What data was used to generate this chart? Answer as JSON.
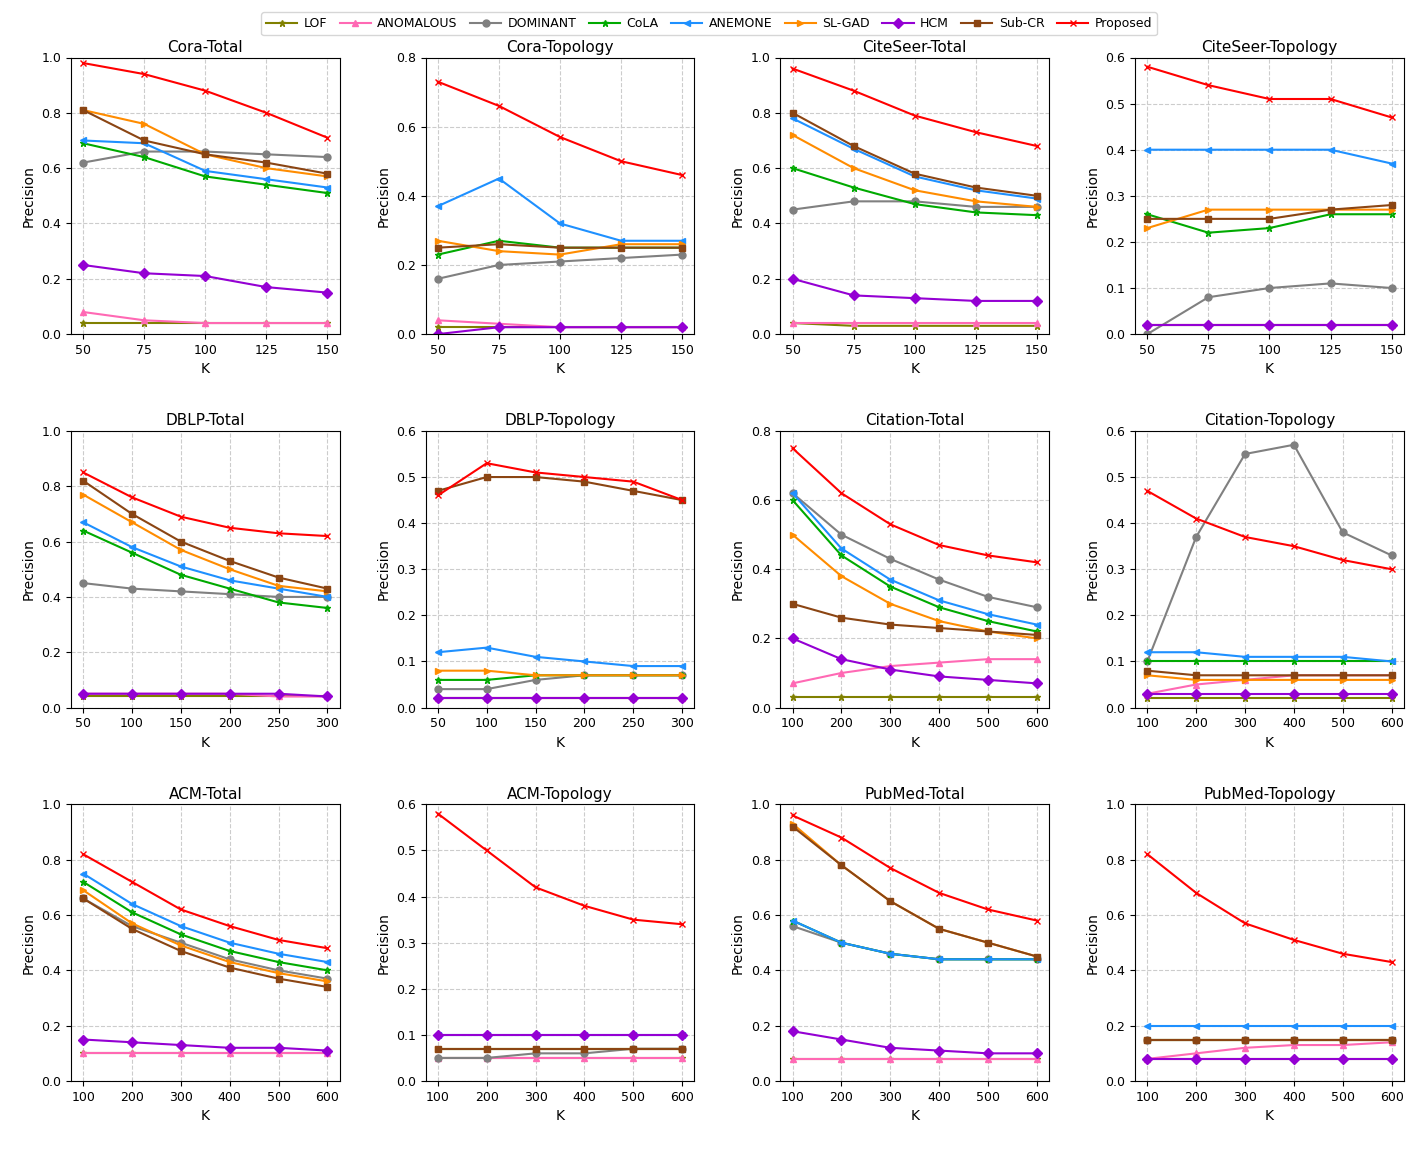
{
  "legend_labels": [
    "LOF",
    "ANOMALOUS",
    "DOMINANT",
    "CoLA",
    "ANEMONE",
    "SL-GAD",
    "HCM",
    "Sub-CR",
    "Proposed"
  ],
  "colors": {
    "LOF": "#808000",
    "ANOMALOUS": "#FF69B4",
    "DOMINANT": "#808080",
    "CoLA": "#00AA00",
    "ANEMONE": "#1E90FF",
    "SL-GAD": "#FF8C00",
    "HCM": "#9400D3",
    "Sub-CR": "#8B4513",
    "Proposed": "#FF0000"
  },
  "markers": {
    "LOF": "*",
    "ANOMALOUS": "^",
    "DOMINANT": "o",
    "CoLA": "*",
    "ANEMONE": "<",
    "SL-GAD": ">",
    "HCM": "D",
    "Sub-CR": "s",
    "Proposed": "x"
  },
  "subplots": [
    {
      "title": "Cora-Total",
      "xlabel": "K",
      "ylabel": "Precision",
      "xlim": [
        50,
        150
      ],
      "ylim": [
        0,
        1
      ],
      "xticks": [
        50,
        75,
        100,
        125,
        150
      ],
      "yticks": [
        0,
        0.2,
        0.4,
        0.6,
        0.8,
        1
      ],
      "x": [
        50,
        75,
        100,
        125,
        150
      ],
      "data": {
        "LOF": [
          0.04,
          0.04,
          0.04,
          0.04,
          0.04
        ],
        "ANOMALOUS": [
          0.08,
          0.05,
          0.04,
          0.04,
          0.04
        ],
        "DOMINANT": [
          0.62,
          0.66,
          0.66,
          0.65,
          0.64
        ],
        "CoLA": [
          0.69,
          0.64,
          0.57,
          0.54,
          0.51
        ],
        "ANEMONE": [
          0.7,
          0.69,
          0.59,
          0.56,
          0.53
        ],
        "SL-GAD": [
          0.81,
          0.76,
          0.65,
          0.6,
          0.57
        ],
        "HCM": [
          0.25,
          0.22,
          0.21,
          0.17,
          0.15
        ],
        "Sub-CR": [
          0.81,
          0.7,
          0.65,
          0.62,
          0.58
        ],
        "Proposed": [
          0.98,
          0.94,
          0.88,
          0.8,
          0.71
        ]
      }
    },
    {
      "title": "Cora-Topology",
      "xlabel": "K",
      "ylabel": "Precision",
      "xlim": [
        50,
        150
      ],
      "ylim": [
        0,
        0.8
      ],
      "xticks": [
        50,
        75,
        100,
        125,
        150
      ],
      "yticks": [
        0,
        0.2,
        0.4,
        0.6,
        0.8
      ],
      "x": [
        50,
        75,
        100,
        125,
        150
      ],
      "data": {
        "LOF": [
          0.02,
          0.02,
          0.02,
          0.02,
          0.02
        ],
        "ANOMALOUS": [
          0.04,
          0.03,
          0.02,
          0.02,
          0.02
        ],
        "DOMINANT": [
          0.16,
          0.2,
          0.21,
          0.22,
          0.23
        ],
        "CoLA": [
          0.23,
          0.27,
          0.25,
          0.25,
          0.25
        ],
        "ANEMONE": [
          0.37,
          0.45,
          0.32,
          0.27,
          0.27
        ],
        "SL-GAD": [
          0.27,
          0.24,
          0.23,
          0.26,
          0.26
        ],
        "HCM": [
          0.0,
          0.02,
          0.02,
          0.02,
          0.02
        ],
        "Sub-CR": [
          0.25,
          0.26,
          0.25,
          0.25,
          0.25
        ],
        "Proposed": [
          0.73,
          0.66,
          0.57,
          0.5,
          0.46
        ]
      }
    },
    {
      "title": "CiteSeer-Total",
      "xlabel": "K",
      "ylabel": "Precision",
      "xlim": [
        50,
        150
      ],
      "ylim": [
        0,
        1
      ],
      "xticks": [
        50,
        75,
        100,
        125,
        150
      ],
      "yticks": [
        0,
        0.2,
        0.4,
        0.6,
        0.8,
        1
      ],
      "x": [
        50,
        75,
        100,
        125,
        150
      ],
      "data": {
        "LOF": [
          0.04,
          0.03,
          0.03,
          0.03,
          0.03
        ],
        "ANOMALOUS": [
          0.04,
          0.04,
          0.04,
          0.04,
          0.04
        ],
        "DOMINANT": [
          0.45,
          0.48,
          0.48,
          0.46,
          0.46
        ],
        "CoLA": [
          0.6,
          0.53,
          0.47,
          0.44,
          0.43
        ],
        "ANEMONE": [
          0.78,
          0.67,
          0.57,
          0.52,
          0.49
        ],
        "SL-GAD": [
          0.72,
          0.6,
          0.52,
          0.48,
          0.46
        ],
        "HCM": [
          0.2,
          0.14,
          0.13,
          0.12,
          0.12
        ],
        "Sub-CR": [
          0.8,
          0.68,
          0.58,
          0.53,
          0.5
        ],
        "Proposed": [
          0.96,
          0.88,
          0.79,
          0.73,
          0.68
        ]
      }
    },
    {
      "title": "CiteSeer-Topology",
      "xlabel": "K",
      "ylabel": "Precision",
      "xlim": [
        50,
        150
      ],
      "ylim": [
        0,
        0.6
      ],
      "xticks": [
        50,
        75,
        100,
        125,
        150
      ],
      "yticks": [
        0,
        0.1,
        0.2,
        0.3,
        0.4,
        0.5,
        0.6
      ],
      "x": [
        50,
        75,
        100,
        125,
        150
      ],
      "data": {
        "LOF": [
          0.02,
          0.02,
          0.02,
          0.02,
          0.02
        ],
        "ANOMALOUS": [
          0.02,
          0.02,
          0.02,
          0.02,
          0.02
        ],
        "DOMINANT": [
          0.0,
          0.08,
          0.1,
          0.11,
          0.1
        ],
        "CoLA": [
          0.26,
          0.22,
          0.23,
          0.26,
          0.26
        ],
        "ANEMONE": [
          0.4,
          0.4,
          0.4,
          0.4,
          0.37
        ],
        "SL-GAD": [
          0.23,
          0.27,
          0.27,
          0.27,
          0.27
        ],
        "HCM": [
          0.02,
          0.02,
          0.02,
          0.02,
          0.02
        ],
        "Sub-CR": [
          0.25,
          0.25,
          0.25,
          0.27,
          0.28
        ],
        "Proposed": [
          0.58,
          0.54,
          0.51,
          0.51,
          0.47
        ]
      }
    },
    {
      "title": "DBLP-Total",
      "xlabel": "K",
      "ylabel": "Precision",
      "xlim": [
        50,
        300
      ],
      "ylim": [
        0,
        1
      ],
      "xticks": [
        50,
        100,
        150,
        200,
        250,
        300
      ],
      "yticks": [
        0,
        0.2,
        0.4,
        0.6,
        0.8,
        1
      ],
      "x": [
        50,
        100,
        150,
        200,
        250,
        300
      ],
      "data": {
        "LOF": [
          0.04,
          0.04,
          0.04,
          0.04,
          0.04,
          0.04
        ],
        "ANOMALOUS": [
          0.05,
          0.05,
          0.05,
          0.05,
          0.04,
          0.04
        ],
        "DOMINANT": [
          0.45,
          0.43,
          0.42,
          0.41,
          0.4,
          0.4
        ],
        "CoLA": [
          0.64,
          0.56,
          0.48,
          0.43,
          0.38,
          0.36
        ],
        "ANEMONE": [
          0.67,
          0.58,
          0.51,
          0.46,
          0.43,
          0.4
        ],
        "SL-GAD": [
          0.77,
          0.67,
          0.57,
          0.5,
          0.44,
          0.42
        ],
        "HCM": [
          0.05,
          0.05,
          0.05,
          0.05,
          0.05,
          0.04
        ],
        "Sub-CR": [
          0.82,
          0.7,
          0.6,
          0.53,
          0.47,
          0.43
        ],
        "Proposed": [
          0.85,
          0.76,
          0.69,
          0.65,
          0.63,
          0.62
        ]
      }
    },
    {
      "title": "DBLP-Topology",
      "xlabel": "K",
      "ylabel": "Precision",
      "xlim": [
        50,
        300
      ],
      "ylim": [
        0,
        0.6
      ],
      "xticks": [
        50,
        100,
        150,
        200,
        250,
        300
      ],
      "yticks": [
        0,
        0.1,
        0.2,
        0.3,
        0.4,
        0.5,
        0.6
      ],
      "x": [
        50,
        100,
        150,
        200,
        250,
        300
      ],
      "data": {
        "LOF": [
          0.02,
          0.02,
          0.02,
          0.02,
          0.02,
          0.02
        ],
        "ANOMALOUS": [
          0.02,
          0.02,
          0.02,
          0.02,
          0.02,
          0.02
        ],
        "DOMINANT": [
          0.04,
          0.04,
          0.06,
          0.07,
          0.07,
          0.07
        ],
        "CoLA": [
          0.06,
          0.06,
          0.07,
          0.07,
          0.07,
          0.07
        ],
        "ANEMONE": [
          0.12,
          0.13,
          0.11,
          0.1,
          0.09,
          0.09
        ],
        "SL-GAD": [
          0.08,
          0.08,
          0.07,
          0.07,
          0.07,
          0.07
        ],
        "HCM": [
          0.02,
          0.02,
          0.02,
          0.02,
          0.02,
          0.02
        ],
        "Sub-CR": [
          0.47,
          0.5,
          0.5,
          0.49,
          0.47,
          0.45
        ],
        "Proposed": [
          0.46,
          0.53,
          0.51,
          0.5,
          0.49,
          0.45
        ]
      }
    },
    {
      "title": "Citation-Total",
      "xlabel": "K",
      "ylabel": "Precision",
      "xlim": [
        100,
        600
      ],
      "ylim": [
        0,
        0.8
      ],
      "xticks": [
        100,
        200,
        300,
        400,
        500,
        600
      ],
      "yticks": [
        0,
        0.2,
        0.4,
        0.6,
        0.8
      ],
      "x": [
        100,
        200,
        300,
        400,
        500,
        600
      ],
      "data": {
        "LOF": [
          0.03,
          0.03,
          0.03,
          0.03,
          0.03,
          0.03
        ],
        "ANOMALOUS": [
          0.07,
          0.1,
          0.12,
          0.13,
          0.14,
          0.14
        ],
        "DOMINANT": [
          0.62,
          0.5,
          0.43,
          0.37,
          0.32,
          0.29
        ],
        "CoLA": [
          0.6,
          0.44,
          0.35,
          0.29,
          0.25,
          0.22
        ],
        "ANEMONE": [
          0.62,
          0.46,
          0.37,
          0.31,
          0.27,
          0.24
        ],
        "SL-GAD": [
          0.5,
          0.38,
          0.3,
          0.25,
          0.22,
          0.2
        ],
        "HCM": [
          0.2,
          0.14,
          0.11,
          0.09,
          0.08,
          0.07
        ],
        "Sub-CR": [
          0.3,
          0.26,
          0.24,
          0.23,
          0.22,
          0.21
        ],
        "Proposed": [
          0.75,
          0.62,
          0.53,
          0.47,
          0.44,
          0.42
        ]
      }
    },
    {
      "title": "Citation-Topology",
      "xlabel": "K",
      "ylabel": "Precision",
      "xlim": [
        100,
        600
      ],
      "ylim": [
        0,
        0.6
      ],
      "xticks": [
        100,
        200,
        300,
        400,
        500,
        600
      ],
      "yticks": [
        0,
        0.1,
        0.2,
        0.3,
        0.4,
        0.5,
        0.6
      ],
      "x": [
        100,
        200,
        300,
        400,
        500,
        600
      ],
      "data": {
        "LOF": [
          0.02,
          0.02,
          0.02,
          0.02,
          0.02,
          0.02
        ],
        "ANOMALOUS": [
          0.03,
          0.05,
          0.06,
          0.07,
          0.07,
          0.07
        ],
        "DOMINANT": [
          0.1,
          0.37,
          0.55,
          0.57,
          0.38,
          0.33
        ],
        "CoLA": [
          0.1,
          0.1,
          0.1,
          0.1,
          0.1,
          0.1
        ],
        "ANEMONE": [
          0.12,
          0.12,
          0.11,
          0.11,
          0.11,
          0.1
        ],
        "SL-GAD": [
          0.07,
          0.06,
          0.06,
          0.06,
          0.06,
          0.06
        ],
        "HCM": [
          0.03,
          0.03,
          0.03,
          0.03,
          0.03,
          0.03
        ],
        "Sub-CR": [
          0.08,
          0.07,
          0.07,
          0.07,
          0.07,
          0.07
        ],
        "Proposed": [
          0.47,
          0.41,
          0.37,
          0.35,
          0.32,
          0.3
        ]
      }
    },
    {
      "title": "ACM-Total",
      "xlabel": "K",
      "ylabel": "Precision",
      "xlim": [
        100,
        600
      ],
      "ylim": [
        0,
        1
      ],
      "xticks": [
        100,
        200,
        300,
        400,
        500,
        600
      ],
      "yticks": [
        0,
        0.2,
        0.4,
        0.6,
        0.8,
        1
      ],
      "x": [
        100,
        200,
        300,
        400,
        500,
        600
      ],
      "data": {
        "LOF": [
          0.1,
          0.1,
          0.1,
          0.1,
          0.1,
          0.1
        ],
        "ANOMALOUS": [
          0.1,
          0.1,
          0.1,
          0.1,
          0.1,
          0.1
        ],
        "DOMINANT": [
          0.66,
          0.56,
          0.5,
          0.44,
          0.4,
          0.37
        ],
        "CoLA": [
          0.72,
          0.61,
          0.53,
          0.47,
          0.43,
          0.4
        ],
        "ANEMONE": [
          0.75,
          0.64,
          0.56,
          0.5,
          0.46,
          0.43
        ],
        "SL-GAD": [
          0.69,
          0.57,
          0.49,
          0.43,
          0.39,
          0.36
        ],
        "HCM": [
          0.15,
          0.14,
          0.13,
          0.12,
          0.12,
          0.11
        ],
        "Sub-CR": [
          0.66,
          0.55,
          0.47,
          0.41,
          0.37,
          0.34
        ],
        "Proposed": [
          0.82,
          0.72,
          0.62,
          0.56,
          0.51,
          0.48
        ]
      }
    },
    {
      "title": "ACM-Topology",
      "xlabel": "K",
      "ylabel": "Precision",
      "xlim": [
        100,
        600
      ],
      "ylim": [
        0,
        0.6
      ],
      "xticks": [
        100,
        200,
        300,
        400,
        500,
        600
      ],
      "yticks": [
        0,
        0.1,
        0.2,
        0.3,
        0.4,
        0.5,
        0.6
      ],
      "x": [
        100,
        200,
        300,
        400,
        500,
        600
      ],
      "data": {
        "LOF": [
          0.05,
          0.05,
          0.05,
          0.05,
          0.05,
          0.05
        ],
        "ANOMALOUS": [
          0.05,
          0.05,
          0.05,
          0.05,
          0.05,
          0.05
        ],
        "DOMINANT": [
          0.05,
          0.05,
          0.06,
          0.06,
          0.07,
          0.07
        ],
        "CoLA": [
          0.07,
          0.07,
          0.07,
          0.07,
          0.07,
          0.07
        ],
        "ANEMONE": [
          0.1,
          0.1,
          0.1,
          0.1,
          0.1,
          0.1
        ],
        "SL-GAD": [
          0.07,
          0.07,
          0.07,
          0.07,
          0.07,
          0.07
        ],
        "HCM": [
          0.1,
          0.1,
          0.1,
          0.1,
          0.1,
          0.1
        ],
        "Sub-CR": [
          0.07,
          0.07,
          0.07,
          0.07,
          0.07,
          0.07
        ],
        "Proposed": [
          0.58,
          0.5,
          0.42,
          0.38,
          0.35,
          0.34
        ]
      }
    },
    {
      "title": "PubMed-Total",
      "xlabel": "K",
      "ylabel": "Precision",
      "xlim": [
        100,
        600
      ],
      "ylim": [
        0,
        1
      ],
      "xticks": [
        100,
        200,
        300,
        400,
        500,
        600
      ],
      "yticks": [
        0,
        0.2,
        0.4,
        0.6,
        0.8,
        1
      ],
      "x": [
        100,
        200,
        300,
        400,
        500,
        600
      ],
      "data": {
        "LOF": [
          0.08,
          0.08,
          0.08,
          0.08,
          0.08,
          0.08
        ],
        "ANOMALOUS": [
          0.08,
          0.08,
          0.08,
          0.08,
          0.08,
          0.08
        ],
        "DOMINANT": [
          0.56,
          0.5,
          0.46,
          0.44,
          0.44,
          0.44
        ],
        "CoLA": [
          0.58,
          0.5,
          0.46,
          0.44,
          0.44,
          0.44
        ],
        "ANEMONE": [
          0.58,
          0.5,
          0.46,
          0.44,
          0.44,
          0.44
        ],
        "SL-GAD": [
          0.93,
          0.78,
          0.65,
          0.55,
          0.5,
          0.45
        ],
        "HCM": [
          0.18,
          0.15,
          0.12,
          0.11,
          0.1,
          0.1
        ],
        "Sub-CR": [
          0.92,
          0.78,
          0.65,
          0.55,
          0.5,
          0.45
        ],
        "Proposed": [
          0.96,
          0.88,
          0.77,
          0.68,
          0.62,
          0.58
        ]
      }
    },
    {
      "title": "PubMed-Topology",
      "xlabel": "K",
      "ylabel": "Precision",
      "xlim": [
        100,
        600
      ],
      "ylim": [
        0,
        1
      ],
      "xticks": [
        100,
        200,
        300,
        400,
        500,
        600
      ],
      "yticks": [
        0,
        0.2,
        0.4,
        0.6,
        0.8,
        1
      ],
      "x": [
        100,
        200,
        300,
        400,
        500,
        600
      ],
      "data": {
        "LOF": [
          0.08,
          0.08,
          0.08,
          0.08,
          0.08,
          0.08
        ],
        "ANOMALOUS": [
          0.08,
          0.1,
          0.12,
          0.13,
          0.13,
          0.14
        ],
        "DOMINANT": [
          0.15,
          0.15,
          0.15,
          0.15,
          0.15,
          0.15
        ],
        "CoLA": [
          0.15,
          0.15,
          0.15,
          0.15,
          0.15,
          0.15
        ],
        "ANEMONE": [
          0.2,
          0.2,
          0.2,
          0.2,
          0.2,
          0.2
        ],
        "SL-GAD": [
          0.15,
          0.15,
          0.15,
          0.15,
          0.15,
          0.15
        ],
        "HCM": [
          0.08,
          0.08,
          0.08,
          0.08,
          0.08,
          0.08
        ],
        "Sub-CR": [
          0.15,
          0.15,
          0.15,
          0.15,
          0.15,
          0.15
        ],
        "Proposed": [
          0.82,
          0.68,
          0.57,
          0.51,
          0.46,
          0.43
        ]
      }
    }
  ]
}
